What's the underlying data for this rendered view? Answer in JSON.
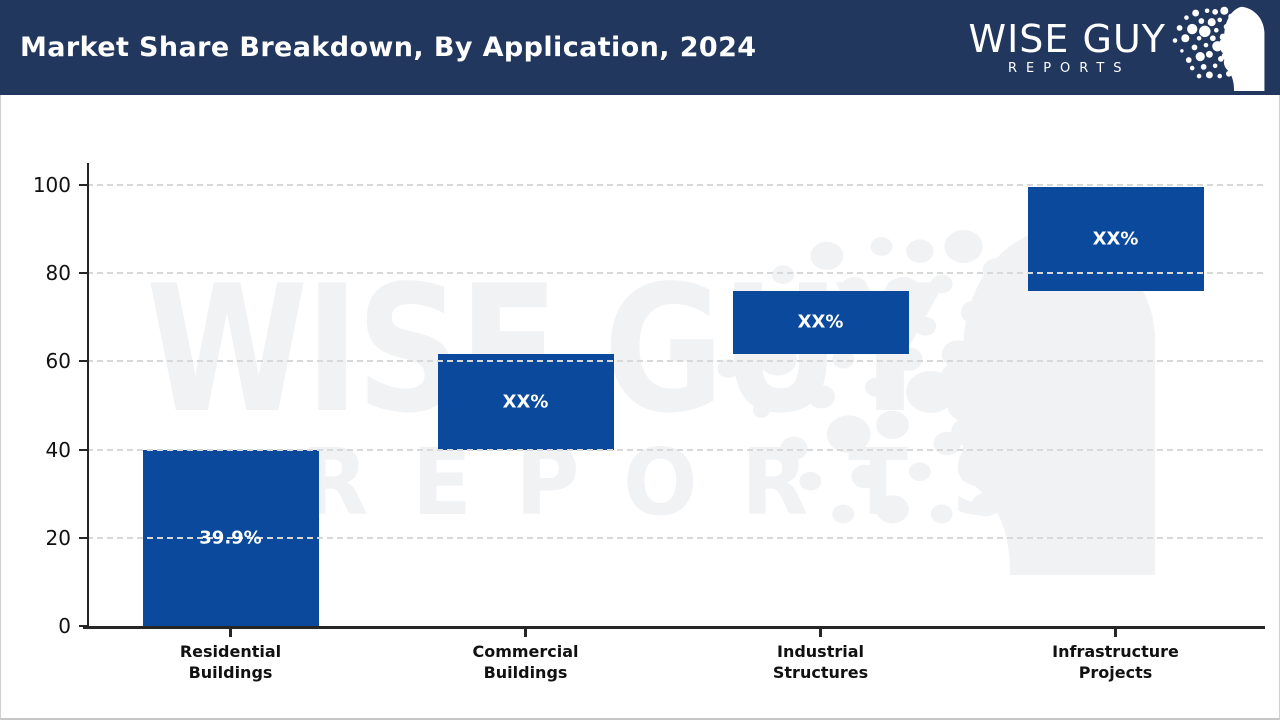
{
  "header": {
    "title": "Market Share Breakdown, By Application, 2024",
    "logo_line1": "WISE GUY",
    "logo_line2": "REPORTS"
  },
  "watermark": {
    "line1": "WISE GUY",
    "line2": "REPORTS"
  },
  "colors": {
    "header_bg": "#21375e",
    "bar": "#0a499c",
    "bar_label": "#ffffff",
    "grid": "#d8d8d8",
    "axis": "#262626",
    "watermark": "#f1f2f4",
    "title_text": "#ffffff"
  },
  "chart_data": {
    "type": "bar",
    "subtype": "waterfall",
    "title": "Market Share Breakdown, By Application, 2024",
    "categories": [
      {
        "line1": "Residential",
        "line2": "Buildings"
      },
      {
        "line1": "Commercial",
        "line2": "Buildings"
      },
      {
        "line1": "Industrial",
        "line2": "Structures"
      },
      {
        "line1": "Infrastructure",
        "line2": "Projects"
      }
    ],
    "segments": [
      {
        "category": "Residential Buildings",
        "label": "39.9%",
        "start": 0,
        "end": 39.9
      },
      {
        "category": "Commercial Buildings",
        "label": "XX%",
        "start": 39.9,
        "end": 61.7
      },
      {
        "category": "Industrial Structures",
        "label": "XX%",
        "start": 61.7,
        "end": 76.0
      },
      {
        "category": "Infrastructure Projects",
        "label": "XX%",
        "start": 76.0,
        "end": 99.6
      }
    ],
    "xlabel": "",
    "ylabel": "",
    "ylim": [
      0,
      100
    ],
    "yticks": [
      0,
      20,
      40,
      60,
      80,
      100
    ],
    "grid": "horizontal-dashed",
    "legend": null
  }
}
